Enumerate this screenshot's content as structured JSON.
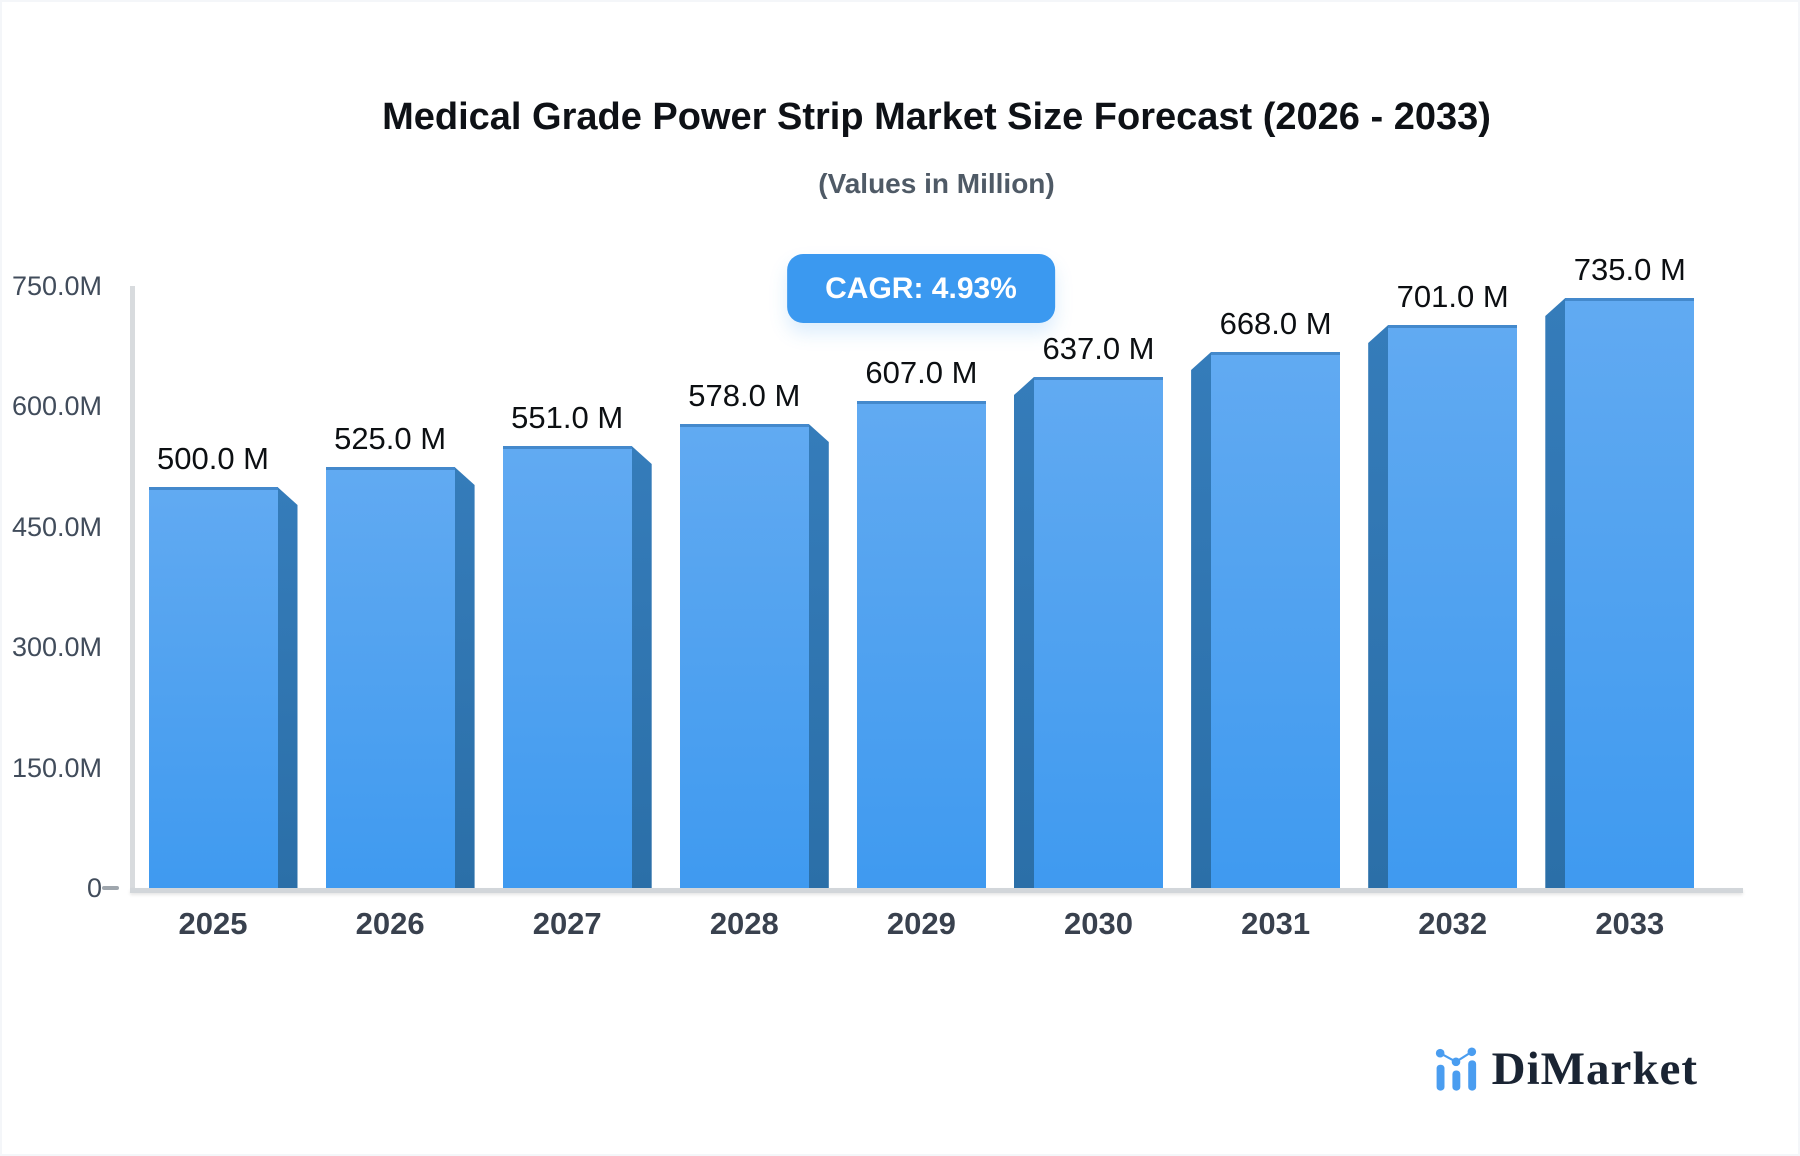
{
  "title": "Medical Grade Power Strip Market Size Forecast (2026 - 2033)",
  "subtitle": "(Values in Million)",
  "badge": {
    "label": "CAGR: 4.93%"
  },
  "chart_data": {
    "type": "bar",
    "title": "Medical Grade Power Strip Market Size Forecast (2026 - 2033)",
    "subtitle": "(Values in Million)",
    "xlabel": "",
    "ylabel": "",
    "categories": [
      "2025",
      "2026",
      "2027",
      "2028",
      "2029",
      "2030",
      "2031",
      "2032",
      "2033"
    ],
    "values": [
      500,
      525,
      551,
      578,
      607,
      637,
      668,
      701,
      735
    ],
    "value_labels": [
      "500.0 M",
      "525.0 M",
      "551.0 M",
      "578.0 M",
      "607.0 M",
      "637.0 M",
      "668.0 M",
      "701.0 M",
      "735.0 M"
    ],
    "ylim": [
      0,
      750
    ],
    "y_ticks": [
      {
        "value": 750,
        "label": "750.0M"
      },
      {
        "value": 600,
        "label": "600.0M"
      },
      {
        "value": 450,
        "label": "450.0M"
      },
      {
        "value": 300,
        "label": "300.0M"
      },
      {
        "value": 150,
        "label": "150.0M"
      },
      {
        "value": 0,
        "label": "0"
      }
    ],
    "grid": "off",
    "legend": "none",
    "annotation": "CAGR: 4.93%",
    "colors": {
      "bar_face_top": "#61aaf2",
      "bar_face_bottom": "#3f9af0",
      "bar_side": "#2e76b3",
      "badge_bg": "#3b99f0",
      "badge_text": "#ffffff",
      "axis_line": "#d5d9dd",
      "value_label": "#0c0f12",
      "tick_label": "#414c5b"
    }
  },
  "logo": {
    "text": "DiMarket",
    "icon": "bar-chart-logo-icon",
    "text_color": "#1a2433",
    "accent_color": "#4a9df0"
  }
}
